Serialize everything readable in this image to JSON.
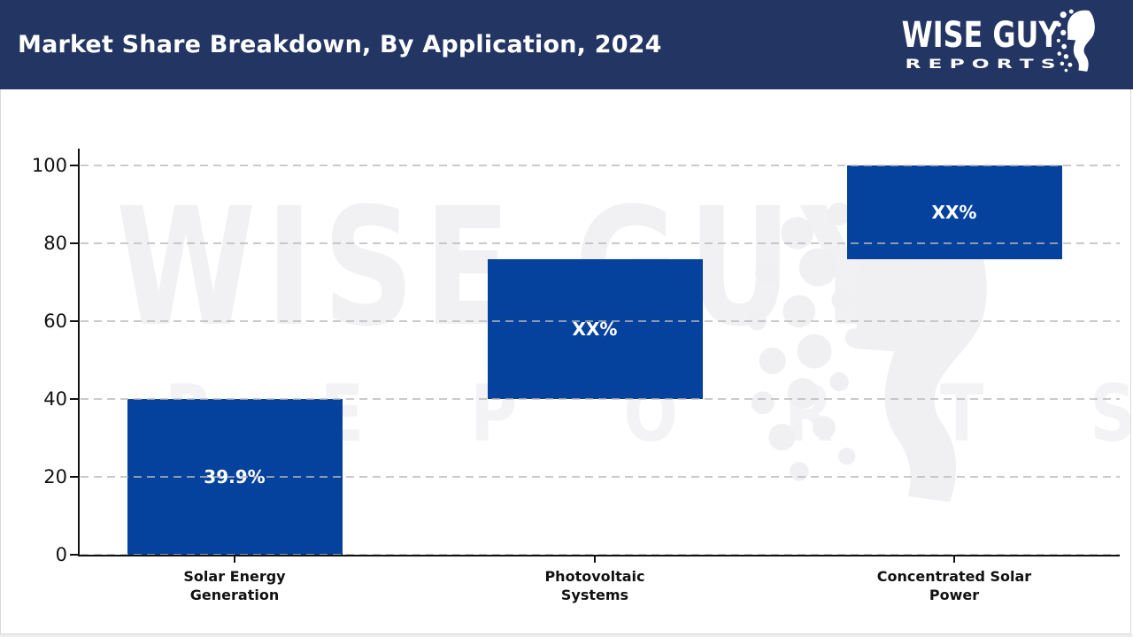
{
  "header": {
    "title": "Market Share Breakdown, By Application, 2024",
    "logo": {
      "line1": "WISE GUY",
      "line2": "R E P O R T S"
    }
  },
  "watermark": {
    "line1": "WISE GUY",
    "line2": "R E P O R T S"
  },
  "colors": {
    "header_bg": "#233663",
    "bar_fill": "#05429e",
    "axis": "#111111",
    "grid": "#bdbdbd",
    "text": "#111111",
    "bar_label": "#ffffff",
    "watermark": "#f1f1f3",
    "card_border": "#d9d9d9"
  },
  "chart_data": {
    "type": "bar",
    "variant": "stepped-waterfall",
    "title": "Market Share Breakdown, By Application, 2024",
    "xlabel": "",
    "ylabel": "",
    "ylim": [
      0,
      105
    ],
    "yticks": [
      0,
      20,
      40,
      60,
      80,
      100
    ],
    "grid": "horizontal-dashed, drawn above bars",
    "legend": "none",
    "categories": [
      [
        "Solar Energy",
        "Generation"
      ],
      [
        "Photovoltaic",
        "Systems"
      ],
      [
        "Concentrated Solar",
        "Power"
      ]
    ],
    "segments": [
      {
        "category": "Solar Energy Generation",
        "from": 0,
        "to": 40,
        "label": "39.9%"
      },
      {
        "category": "Photovoltaic Systems",
        "from": 40,
        "to": 76,
        "label": "XX%"
      },
      {
        "category": "Concentrated Solar Power",
        "from": 76,
        "to": 100,
        "label": "XX%"
      }
    ]
  }
}
